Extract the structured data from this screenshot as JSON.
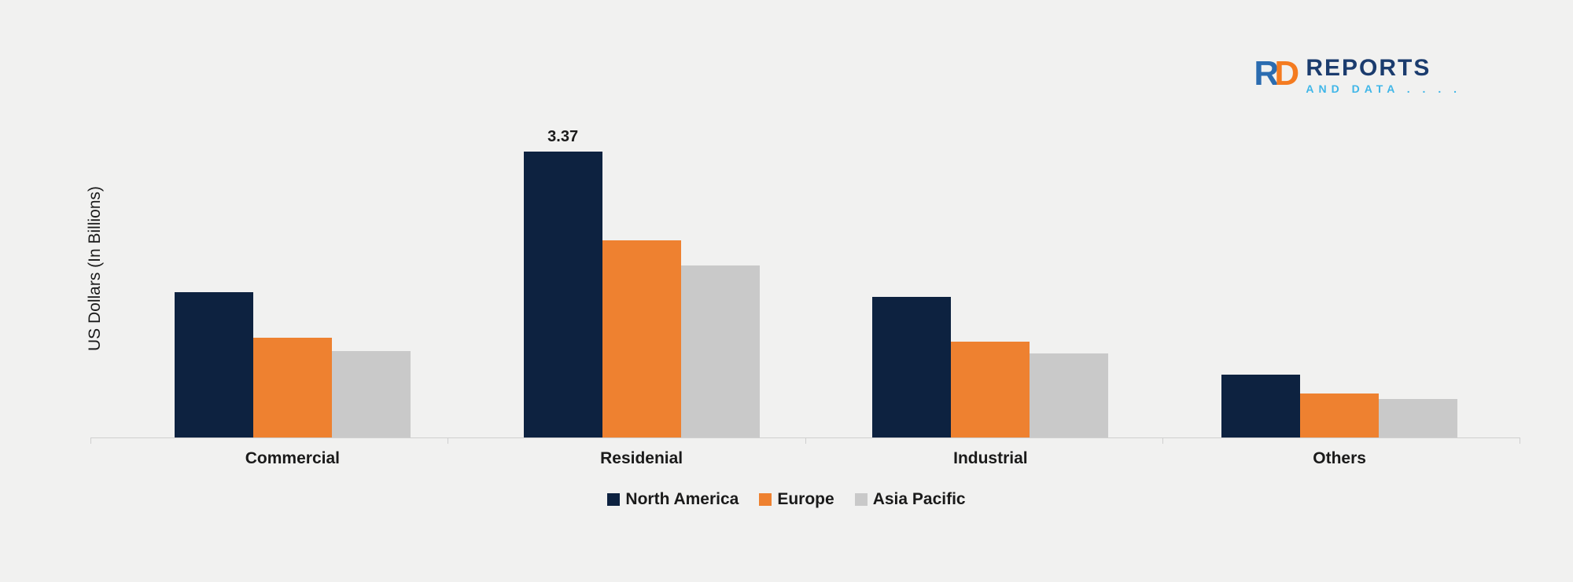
{
  "logo": {
    "icon_r": "R",
    "icon_d": "D",
    "title": "REPORTS",
    "subtitle": "AND DATA . . . ."
  },
  "chart_data": {
    "type": "bar",
    "title": "",
    "xlabel": "",
    "ylabel": "US Dollars (In Billions)",
    "background": "#f1f1f0",
    "grid": false,
    "legend_position": "bottom",
    "categories": [
      "Commercial",
      "Residenial",
      "Industrial",
      "Others"
    ],
    "series": [
      {
        "name": "North America",
        "color": "#0d2240",
        "values": [
          1.71,
          3.37,
          1.66,
          0.74
        ]
      },
      {
        "name": "Europe",
        "color": "#ee8130",
        "values": [
          1.18,
          2.32,
          1.13,
          0.52
        ]
      },
      {
        "name": "Asia Pacific",
        "color": "#c9c9c9",
        "values": [
          1.02,
          2.03,
          0.99,
          0.45
        ]
      }
    ],
    "annotation": {
      "category_index": 1,
      "series_index": 0,
      "text": "3.37"
    },
    "ylim": [
      0,
      3.7
    ]
  }
}
